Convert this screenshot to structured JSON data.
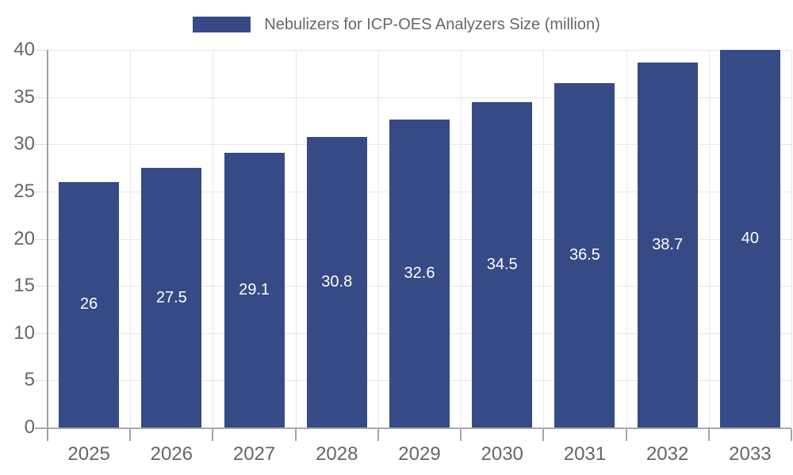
{
  "chart_data": {
    "type": "bar",
    "title": "Nebulizers for ICP-OES Analyzers Size (million)",
    "categories": [
      "2025",
      "2026",
      "2027",
      "2028",
      "2029",
      "2030",
      "2031",
      "2032",
      "2033"
    ],
    "values": [
      26,
      27.5,
      29.1,
      30.8,
      32.6,
      34.5,
      36.5,
      38.7,
      40
    ],
    "value_labels": [
      "26",
      "27.5",
      "29.1",
      "30.8",
      "32.6",
      "34.5",
      "36.5",
      "38.7",
      "40"
    ],
    "xlabel": "",
    "ylabel": "",
    "ylim": [
      0,
      40
    ],
    "yticks": [
      0,
      5,
      10,
      15,
      20,
      25,
      30,
      35,
      40
    ],
    "ytick_labels": [
      "0",
      "5",
      "10",
      "15",
      "20",
      "25",
      "30",
      "35",
      "40"
    ],
    "grid": true,
    "legend_position": "top-center",
    "colors": {
      "bar": "#364a85",
      "value_label": "#ffffff",
      "gridline": "#e7e7ea",
      "axis_line": "#9e9e9e",
      "baseline": "#a9a9a9",
      "ytick_mark": "#dcdcdc",
      "xtick_mark": "#a6a6a6",
      "tick_text": "#666666",
      "title_text": "#666666",
      "background": "#ffffff"
    }
  }
}
